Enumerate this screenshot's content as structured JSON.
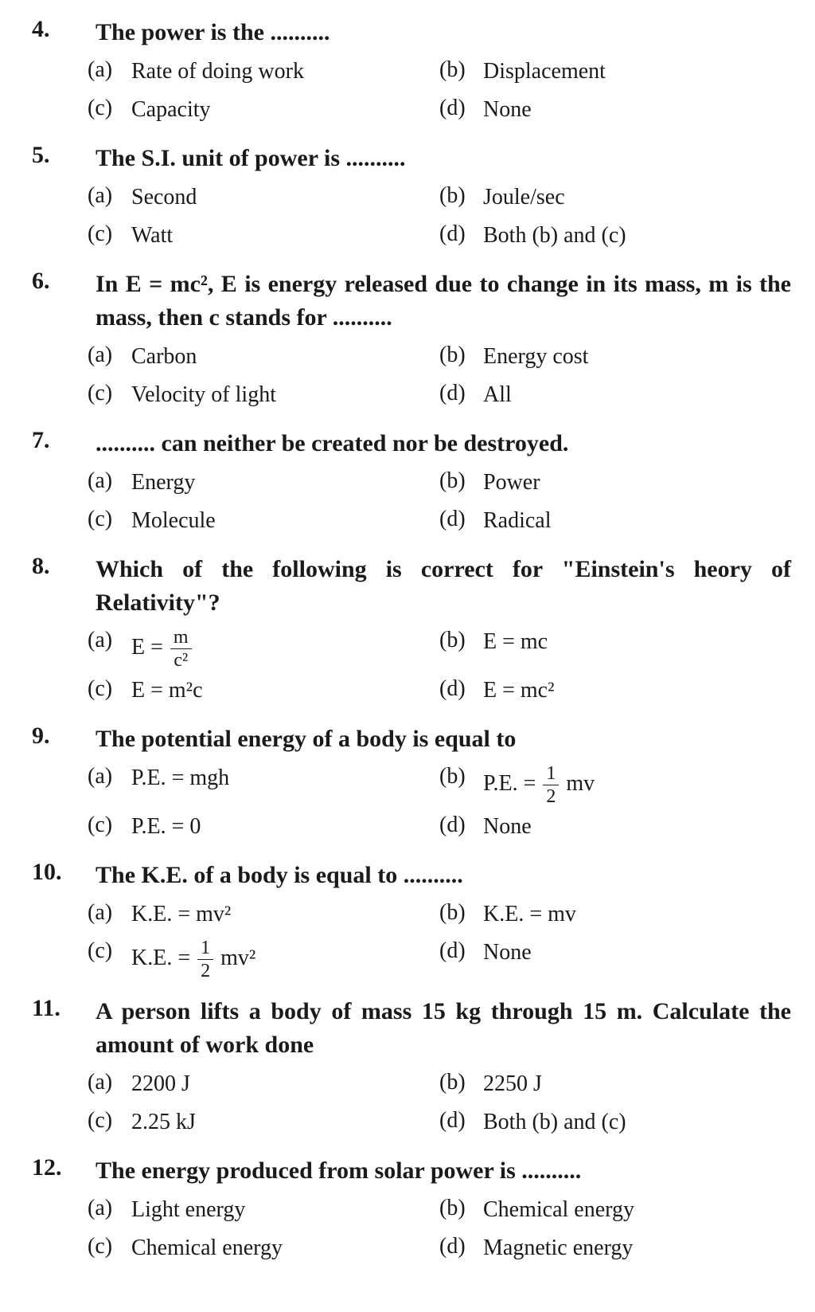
{
  "font": {
    "family": "Times New Roman",
    "question_size_pt": 22,
    "option_size_pt": 21
  },
  "colors": {
    "text": "#1a1a1a",
    "background": "#ffffff"
  },
  "questions": [
    {
      "num": "4.",
      "text": "The power is the ..........",
      "options": {
        "a": {
          "label": "(a)",
          "text": "Rate of doing work"
        },
        "b": {
          "label": "(b)",
          "text": "Displacement"
        },
        "c": {
          "label": "(c)",
          "text": "Capacity"
        },
        "d": {
          "label": "(d)",
          "text": "None"
        }
      }
    },
    {
      "num": "5.",
      "text": "The S.I. unit of power is ..........",
      "options": {
        "a": {
          "label": "(a)",
          "text": "Second"
        },
        "b": {
          "label": "(b)",
          "text": "Joule/sec"
        },
        "c": {
          "label": "(c)",
          "text": "Watt"
        },
        "d": {
          "label": "(d)",
          "text": "Both (b) and (c)"
        }
      }
    },
    {
      "num": "6.",
      "text": "In E = mc², E is energy released due to change in its mass, m is the mass, then c stands for ..........",
      "options": {
        "a": {
          "label": "(a)",
          "text": "Carbon"
        },
        "b": {
          "label": "(b)",
          "text": "Energy cost"
        },
        "c": {
          "label": "(c)",
          "text": "Velocity of light"
        },
        "d": {
          "label": "(d)",
          "text": "All"
        }
      }
    },
    {
      "num": "7.",
      "text": ".......... can neither be created nor be destroyed.",
      "options": {
        "a": {
          "label": "(a)",
          "text": "Energy"
        },
        "b": {
          "label": "(b)",
          "text": "Power"
        },
        "c": {
          "label": "(c)",
          "text": "Molecule"
        },
        "d": {
          "label": "(d)",
          "text": "Radical"
        }
      }
    },
    {
      "num": "8.",
      "text": "Which of the following is correct for \"Einstein's heory of Relativity\"?",
      "options": {
        "a": {
          "label": "(a)",
          "text_html": "E = <span class='frac'><span class='num'>m</span><span class='den'>c²</span></span>"
        },
        "b": {
          "label": "(b)",
          "text": "E = mc"
        },
        "c": {
          "label": "(c)",
          "text": "E = m²c"
        },
        "d": {
          "label": "(d)",
          "text": "E = mc²"
        }
      }
    },
    {
      "num": "9.",
      "text": "The potential energy of a body is equal to",
      "options": {
        "a": {
          "label": "(a)",
          "text": "P.E. = mgh"
        },
        "b": {
          "label": "(b)",
          "text_html": "P.E. = <span class='frac'><span class='num'>1</span><span class='den'>2</span></span> mv"
        },
        "c": {
          "label": "(c)",
          "text": "P.E. = 0"
        },
        "d": {
          "label": "(d)",
          "text": "None"
        }
      }
    },
    {
      "num": "10.",
      "text": "The K.E. of a body is equal to ..........",
      "options": {
        "a": {
          "label": "(a)",
          "text": "K.E. = mv²"
        },
        "b": {
          "label": "(b)",
          "text": "K.E. = mv"
        },
        "c": {
          "label": "(c)",
          "text_html": "K.E. = <span class='frac'><span class='num'>1</span><span class='den'>2</span></span> mv²"
        },
        "d": {
          "label": "(d)",
          "text": "None"
        }
      }
    },
    {
      "num": "11.",
      "text": "A person lifts a body of mass 15 kg through 15 m. Calculate the amount of work done",
      "options": {
        "a": {
          "label": "(a)",
          "text": "2200 J"
        },
        "b": {
          "label": "(b)",
          "text": "2250 J"
        },
        "c": {
          "label": "(c)",
          "text": "2.25 kJ"
        },
        "d": {
          "label": "(d)",
          "text": "Both (b) and (c)"
        }
      }
    },
    {
      "num": "12.",
      "text": "The energy produced from solar power is ..........",
      "options": {
        "a": {
          "label": "(a)",
          "text": "Light energy"
        },
        "b": {
          "label": "(b)",
          "text": "Chemical energy"
        },
        "c": {
          "label": "(c)",
          "text": "Chemical energy"
        },
        "d": {
          "label": "(d)",
          "text": "Magnetic energy"
        }
      }
    }
  ]
}
